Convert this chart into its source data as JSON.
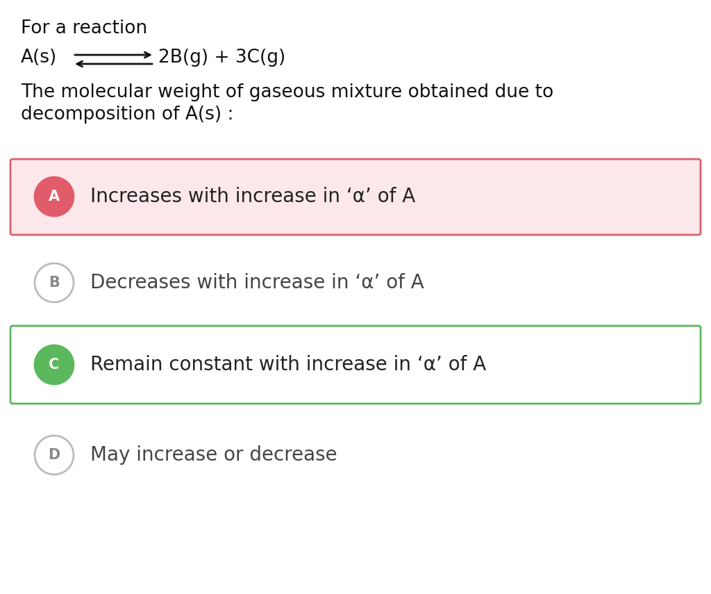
{
  "background_color": "#ffffff",
  "header_line1": "For a reaction",
  "header_line2_left": "A(s)",
  "header_line2_right": "2B(g) + 3C(g)",
  "header_line3a": "The molecular weight of gaseous mixture obtained due to",
  "header_line3b": "decomposition of A(s) :",
  "options": [
    {
      "label": "A",
      "text": "Increases with increase in ‘α’ of A",
      "circle_color": "#e05c6a",
      "circle_border": "#e05c6a",
      "text_color": "#222222",
      "box_bg": "#fce8ea",
      "box_border": "#d9606a",
      "has_box": true,
      "label_text_color": "#ffffff"
    },
    {
      "label": "B",
      "text": "Decreases with increase in ‘α’ of A",
      "circle_color": "#ffffff",
      "circle_border": "#bbbbbb",
      "text_color": "#444444",
      "box_bg": null,
      "box_border": null,
      "has_box": false,
      "label_text_color": "#888888"
    },
    {
      "label": "C",
      "text": "Remain constant with increase in ‘α’ of A",
      "circle_color": "#5cb85c",
      "circle_border": "#5cb85c",
      "text_color": "#222222",
      "box_bg": "#ffffff",
      "box_border": "#5cb85c",
      "has_box": true,
      "label_text_color": "#ffffff"
    },
    {
      "label": "D",
      "text": "May increase or decrease",
      "circle_color": "#ffffff",
      "circle_border": "#bbbbbb",
      "text_color": "#444444",
      "box_bg": null,
      "box_border": null,
      "has_box": false,
      "label_text_color": "#888888"
    }
  ]
}
